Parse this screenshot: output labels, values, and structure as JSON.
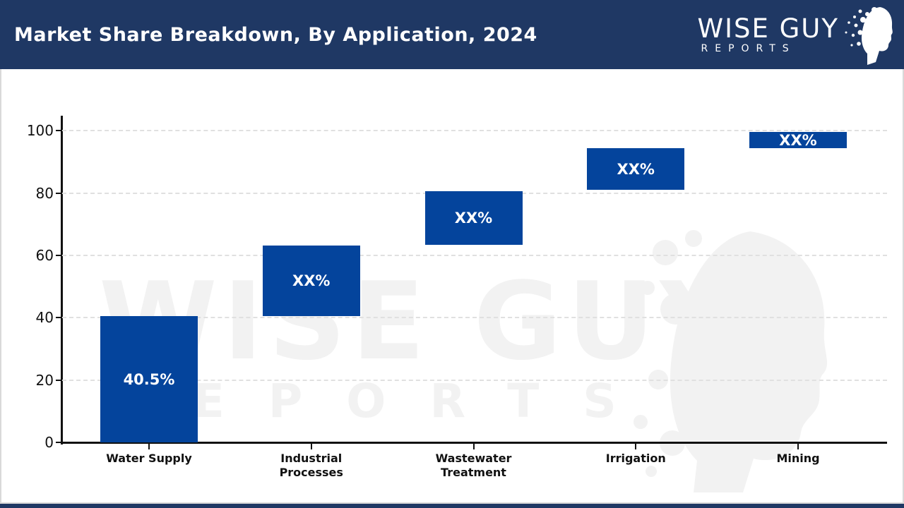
{
  "header": {
    "title": "Market Share Breakdown, By Application, 2024",
    "logo": {
      "line1": "WISE GUY",
      "line2": "REPORTS"
    }
  },
  "watermark": {
    "line1": "WISE GUY",
    "line2": "REPORTS"
  },
  "colors": {
    "header_bg": "#1f3864",
    "footer_bar": "#1f3864",
    "bar": "#04449c",
    "grid": "#e0e0e0",
    "axis": "#111111",
    "bar_label": "#ffffff",
    "watermark": "#f2f2f2",
    "content_border": "#d9d9d9"
  },
  "chart_data": {
    "type": "bar",
    "subtype": "waterfall",
    "title": "Market Share Breakdown, By Application, 2024",
    "xlabel": "",
    "ylabel": "",
    "categories": [
      "Water Supply",
      "Industrial Processes",
      "Wastewater Treatment",
      "Irrigation",
      "Mining"
    ],
    "segments": [
      {
        "category": "Water Supply",
        "start": 0,
        "end": 40.5,
        "label": "40.5%"
      },
      {
        "category": "Industrial Processes",
        "start": 40.5,
        "end": 63.2,
        "label": "XX%"
      },
      {
        "category": "Wastewater Treatment",
        "start": 63.3,
        "end": 80.7,
        "label": "XX%"
      },
      {
        "category": "Irrigation",
        "start": 81.0,
        "end": 94.3,
        "label": "XX%"
      },
      {
        "category": "Mining",
        "start": 94.4,
        "end": 99.6,
        "label": "XX%"
      }
    ],
    "yticks": [
      0,
      20,
      40,
      60,
      80,
      100
    ],
    "ylim": [
      0,
      105
    ],
    "grid": "horizontal-dashed",
    "legend": "none"
  }
}
